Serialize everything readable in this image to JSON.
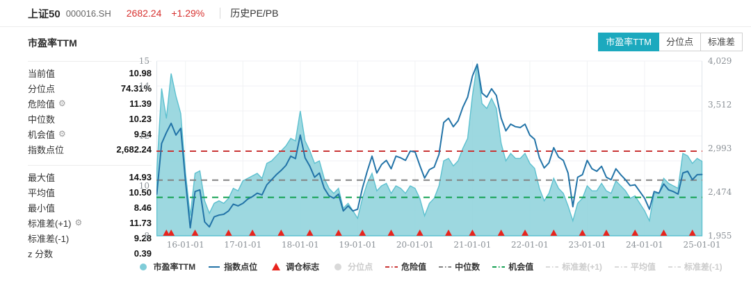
{
  "header": {
    "index_name": "上证50",
    "index_code": "000016.SH",
    "price": "2682.24",
    "change": "+1.29%",
    "nav_item": "历史PE/PB",
    "accent_red": "#d7302e"
  },
  "toolbar": {
    "buttons": [
      {
        "label": "市盈率TTM",
        "active": true
      },
      {
        "label": "分位点",
        "active": false
      },
      {
        "label": "标准差",
        "active": false
      }
    ],
    "active_color": "#1ca9be"
  },
  "panel": {
    "title": "市盈率TTM",
    "groups": [
      [
        {
          "label": "当前值",
          "value": "10.98",
          "gear": false
        },
        {
          "label": "分位点",
          "value": "74.31%",
          "gear": false
        },
        {
          "label": "危险值",
          "value": "11.39",
          "gear": true
        },
        {
          "label": "中位数",
          "value": "10.23",
          "gear": false
        },
        {
          "label": "机会值",
          "value": "9.54",
          "gear": true
        },
        {
          "label": "指数点位",
          "value": "2,682.24",
          "gear": false
        }
      ],
      [
        {
          "label": "最大值",
          "value": "14.93",
          "gear": false
        },
        {
          "label": "平均值",
          "value": "10.50",
          "gear": false
        },
        {
          "label": "最小值",
          "value": "8.46",
          "gear": false
        },
        {
          "label": "标准差(+1)",
          "value": "11.73",
          "gear": true
        },
        {
          "label": "标准差(-1)",
          "value": "9.28",
          "gear": false
        },
        {
          "label": "z 分数",
          "value": "0.39",
          "gear": false
        }
      ]
    ],
    "gear_icon": "⚙"
  },
  "chart_data": {
    "type": "area",
    "title": "市盈率TTM",
    "sampling": "monthly",
    "start_month": "2015-07",
    "end_month": "2025-01",
    "left_axis": {
      "label": "市盈率TTM",
      "min": 8,
      "max": 15,
      "ticks": [
        15,
        14,
        12,
        10,
        8
      ]
    },
    "right_axis": {
      "label": "指数点位",
      "min": 1955,
      "max": 4029,
      "ticks": [
        "4,029",
        "3,512",
        "2,993",
        "2,474",
        "1,955"
      ]
    },
    "x_ticks": {
      "labels": [
        "16-01-01",
        "17-01-01",
        "18-01-01",
        "19-01-01",
        "20-01-01",
        "21-01-01",
        "22-01-01",
        "23-01-01",
        "24-01-01",
        "25-01-01"
      ],
      "month_idx": [
        6,
        18,
        30,
        42,
        54,
        66,
        78,
        90,
        102,
        114
      ]
    },
    "series": [
      {
        "name": "市盈率TTM",
        "type": "area",
        "axis": "left",
        "line_color": "#5cc0cf",
        "fill_color": "#8fd3dc",
        "values": [
          10.6,
          13.9,
          12.7,
          14.5,
          13.6,
          12.9,
          10.5,
          8.8,
          10.5,
          10.6,
          9.4,
          8.9,
          9.3,
          9.4,
          9.3,
          9.5,
          9.9,
          9.8,
          10.2,
          10.3,
          10.4,
          10.5,
          10.3,
          10.9,
          11.0,
          11.2,
          11.4,
          11.6,
          11.9,
          11.8,
          13.0,
          11.8,
          11.4,
          10.9,
          11.0,
          10.3,
          9.9,
          9.7,
          9.9,
          9.1,
          9.3,
          9.0,
          8.7,
          9.5,
          10.1,
          10.5,
          9.8,
          10.0,
          10.1,
          9.7,
          10.0,
          9.9,
          9.7,
          10.0,
          9.9,
          9.5,
          8.8,
          9.3,
          9.5,
          10.0,
          11.0,
          11.1,
          10.8,
          11.0,
          11.5,
          11.9,
          13.6,
          14.9,
          13.3,
          13.1,
          13.5,
          13.1,
          11.7,
          11.0,
          11.3,
          11.1,
          11.1,
          11.3,
          10.9,
          10.7,
          9.9,
          9.4,
          9.7,
          10.3,
          9.9,
          9.7,
          9.2,
          8.6,
          9.3,
          9.5,
          10.0,
          9.8,
          9.8,
          10.1,
          9.8,
          9.7,
          10.2,
          10.0,
          9.8,
          9.5,
          9.6,
          9.3,
          9.0,
          8.6,
          9.7,
          9.7,
          10.3,
          10.1,
          10.0,
          9.9,
          11.3,
          11.2,
          10.9,
          11.1,
          10.98
        ]
      },
      {
        "name": "指数点位",
        "type": "line",
        "axis": "right",
        "line_color": "#2273a7",
        "values": [
          2450,
          3050,
          3180,
          3290,
          3150,
          3230,
          2600,
          2050,
          2480,
          2500,
          2120,
          2060,
          2180,
          2200,
          2210,
          2250,
          2330,
          2310,
          2340,
          2390,
          2420,
          2460,
          2440,
          2560,
          2620,
          2680,
          2730,
          2790,
          2900,
          2870,
          3150,
          2880,
          2780,
          2650,
          2700,
          2520,
          2430,
          2400,
          2450,
          2250,
          2310,
          2250,
          2270,
          2520,
          2720,
          2900,
          2700,
          2800,
          2850,
          2750,
          2900,
          2880,
          2850,
          2960,
          2950,
          2790,
          2640,
          2740,
          2770,
          2920,
          3300,
          3350,
          3250,
          3320,
          3480,
          3600,
          3850,
          3990,
          3650,
          3600,
          3700,
          3620,
          3350,
          3200,
          3280,
          3250,
          3240,
          3280,
          3150,
          3100,
          2880,
          2760,
          2820,
          3000,
          2890,
          2850,
          2700,
          2300,
          2650,
          2680,
          2850,
          2750,
          2720,
          2780,
          2650,
          2620,
          2750,
          2680,
          2620,
          2550,
          2560,
          2480,
          2400,
          2270,
          2480,
          2460,
          2570,
          2500,
          2480,
          2450,
          2700,
          2720,
          2620,
          2680,
          2682.24
        ]
      }
    ],
    "reference_lines": [
      {
        "name": "危险值",
        "value": 11.39,
        "color": "#c93434",
        "style": "dashed"
      },
      {
        "name": "中位数",
        "value": 10.23,
        "color": "#828282",
        "style": "dashed"
      },
      {
        "name": "机会值",
        "value": 9.54,
        "color": "#12a050",
        "style": "dashed"
      }
    ],
    "markers": {
      "name": "调仓标志",
      "shape": "triangle",
      "color": "#e8241d",
      "month_idx": [
        2,
        3,
        8,
        15,
        20,
        26,
        32,
        38,
        43,
        49,
        55,
        61,
        66,
        72,
        77,
        83,
        89,
        94,
        100,
        106,
        112
      ]
    },
    "grid": true,
    "legend_position": "bottom",
    "legend": [
      {
        "label": "市盈率TTM",
        "marker": "circle",
        "color": "#7fccd8",
        "active": true
      },
      {
        "label": "指数点位",
        "marker": "line",
        "color": "#2273a7",
        "active": true
      },
      {
        "label": "调仓标志",
        "marker": "triangle",
        "color": "#e8241d",
        "active": true
      },
      {
        "label": "分位点",
        "marker": "circle",
        "color": "#d9d9d9",
        "active": false
      },
      {
        "label": "危险值",
        "marker": "dashdot",
        "color": "#c93434",
        "active": true
      },
      {
        "label": "中位数",
        "marker": "dashdot",
        "color": "#828282",
        "active": true
      },
      {
        "label": "机会值",
        "marker": "dashdot",
        "color": "#12a050",
        "active": true
      },
      {
        "label": "标准差(+1)",
        "marker": "dashdot",
        "color": "#d9d9d9",
        "active": false
      },
      {
        "label": "平均值",
        "marker": "dashdot",
        "color": "#d9d9d9",
        "active": false
      },
      {
        "label": "标准差(-1)",
        "marker": "dashdot",
        "color": "#d9d9d9",
        "active": false
      }
    ]
  }
}
